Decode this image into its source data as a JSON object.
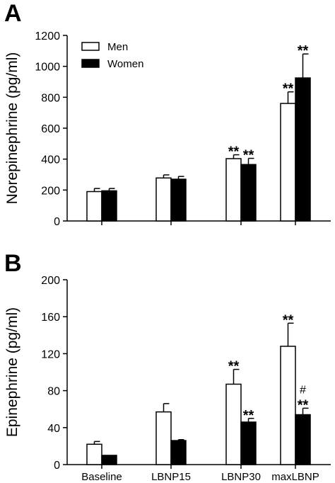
{
  "colors": {
    "men": "#ffffff",
    "women": "#000000",
    "stroke": "#000000"
  },
  "chart_data": [
    {
      "type": "bar",
      "panel_label": "A",
      "categories": [
        "Baseline",
        "LBNP15",
        "LBNP30",
        "maxLBNP"
      ],
      "ylabel": "Norepinephrine (pg/ml)",
      "ylim": [
        0,
        1200
      ],
      "yticks": [
        0,
        200,
        400,
        600,
        800,
        1000,
        1200
      ],
      "show_category_labels": false,
      "legend": {
        "position": "top-left",
        "entries": [
          "Men",
          "Women"
        ]
      },
      "series": [
        {
          "name": "Men",
          "values": [
            190,
            278,
            403,
            760
          ],
          "errors": [
            20,
            20,
            25,
            75
          ],
          "annotations": [
            "",
            "",
            "**",
            "**"
          ]
        },
        {
          "name": "Women",
          "values": [
            195,
            270,
            365,
            925
          ],
          "errors": [
            15,
            18,
            40,
            155
          ],
          "annotations": [
            "",
            "",
            "**",
            "**"
          ]
        }
      ]
    },
    {
      "type": "bar",
      "panel_label": "B",
      "categories": [
        "Baseline",
        "LBNP15",
        "LBNP30",
        "maxLBNP"
      ],
      "ylabel": "Epinephrine (pg/ml)",
      "ylim": [
        0,
        200
      ],
      "yticks": [
        0,
        40,
        80,
        120,
        160,
        200
      ],
      "show_category_labels": true,
      "series": [
        {
          "name": "Men",
          "values": [
            22,
            57,
            87,
            128
          ],
          "errors": [
            3,
            9,
            16,
            25
          ],
          "annotations": [
            "",
            "",
            "**",
            "**"
          ]
        },
        {
          "name": "Women",
          "values": [
            10,
            26,
            46,
            54
          ],
          "errors": [
            0,
            1,
            4,
            7
          ],
          "annotations": [
            "",
            "",
            "**",
            "#\n**"
          ]
        }
      ]
    }
  ]
}
